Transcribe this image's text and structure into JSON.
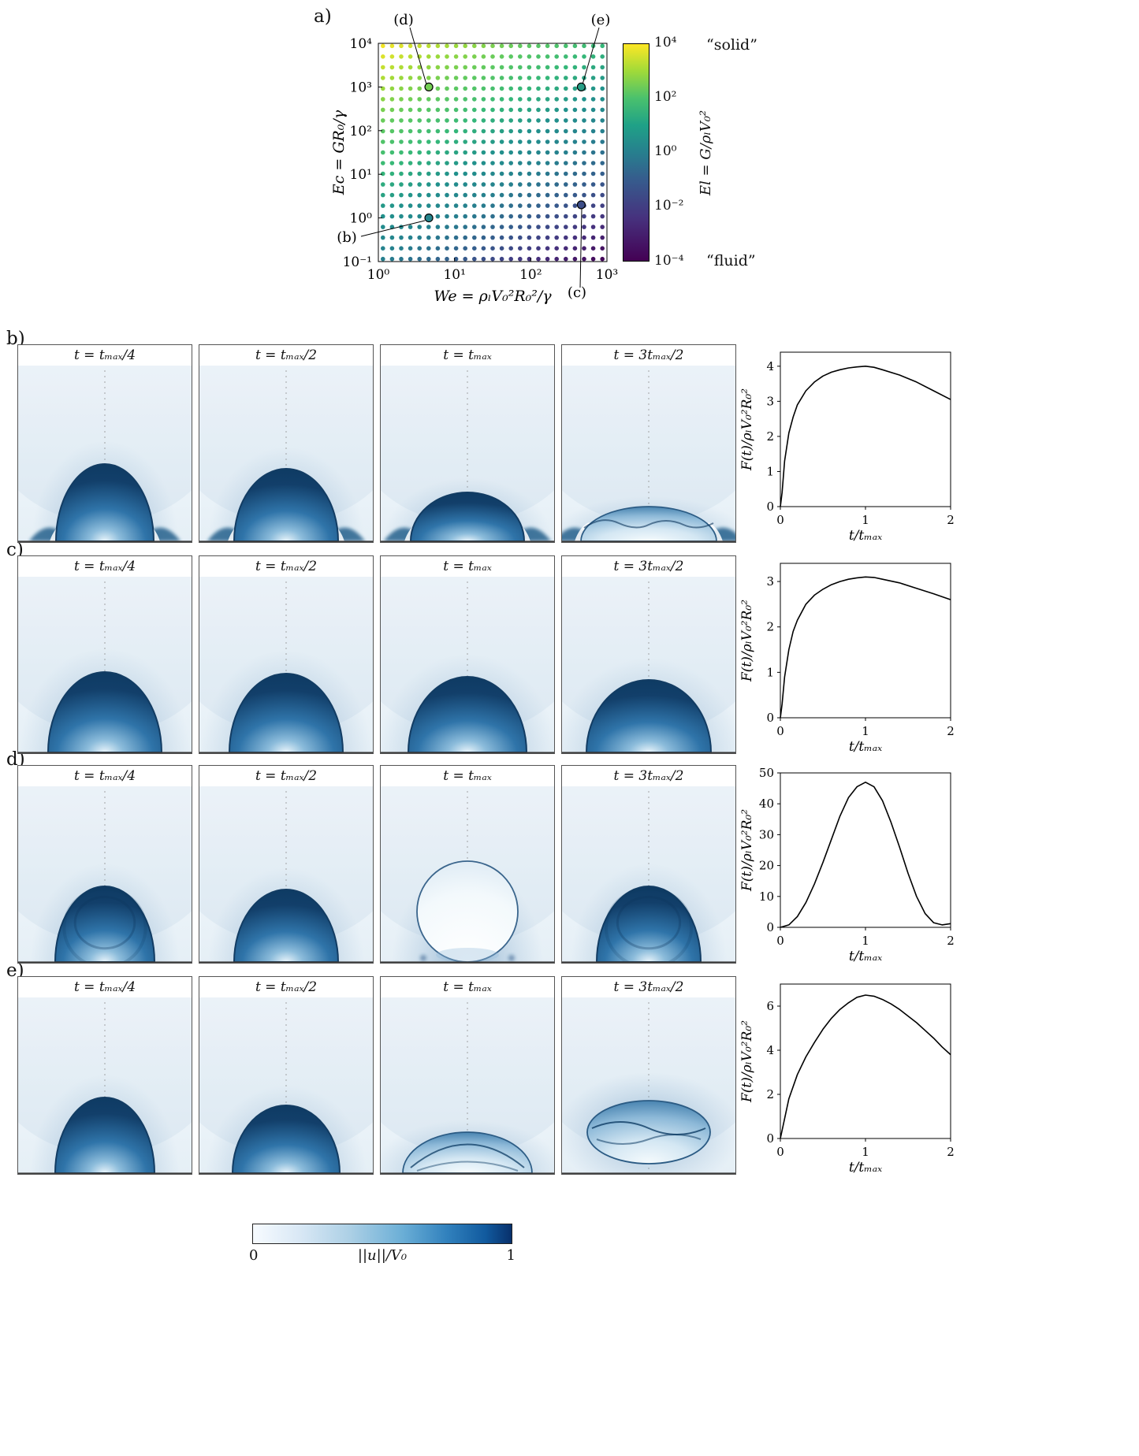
{
  "figure": {
    "panel_a": {
      "label": "a)",
      "x_label": "We = ρₗV₀²R₀²/γ",
      "y_label": "Ec = GR₀/γ",
      "x_ticks": [
        "10⁰",
        "10¹",
        "10²",
        "10³"
      ],
      "y_ticks": [
        "10⁴",
        "10³",
        "10²",
        "10¹",
        "10⁰",
        "10⁻¹"
      ],
      "colorbar": {
        "ticks": [
          "10⁴",
          "10²",
          "10⁰",
          "10⁻²",
          "10⁻⁴"
        ],
        "label": "El = G/ρₗV₀²",
        "top_text": "“solid”",
        "bottom_text": "“fluid”"
      }
    },
    "force_labels": {
      "xlabel": "t/tₘₐₓ",
      "ylabel": "F(t)/ρₗV₀²R₀²"
    },
    "rows": [
      {
        "label": "b)",
        "panels": [
          {
            "title": "t = tₘₐₓ/4",
            "variant": "b-dome-early"
          },
          {
            "title": "t = tₘₐₓ/2",
            "variant": "b-dome-mid"
          },
          {
            "title": "t = tₘₐₓ",
            "variant": "b-dome-flat"
          },
          {
            "title": "t = 3tₘₐₓ/2",
            "variant": "b-cap-spread"
          }
        ]
      },
      {
        "label": "c)",
        "panels": [
          {
            "title": "t = tₘₐₓ/4",
            "variant": "c-dome-1"
          },
          {
            "title": "t = tₘₐₓ/2",
            "variant": "c-dome-2"
          },
          {
            "title": "t = tₘₐₓ",
            "variant": "c-dome-3"
          },
          {
            "title": "t = 3tₘₐₓ/2",
            "variant": "c-dome-4"
          }
        ]
      },
      {
        "label": "d)",
        "panels": [
          {
            "title": "t = tₘₐₓ/4",
            "variant": "d-dome-rings"
          },
          {
            "title": "t = tₘₐₓ/2",
            "variant": "d-dome-bright"
          },
          {
            "title": "t = tₘₐₓ",
            "variant": "d-circle-rest"
          },
          {
            "title": "t = 3tₘₐₓ/2",
            "variant": "d-dome-rebound"
          }
        ]
      },
      {
        "label": "e)",
        "panels": [
          {
            "title": "t = tₘₐₓ/4",
            "variant": "e-dome-1"
          },
          {
            "title": "t = tₘₐₓ/2",
            "variant": "e-dome-2"
          },
          {
            "title": "t = tₘₐₓ",
            "variant": "e-cap-flat"
          },
          {
            "title": "t = 3tₘₐₓ/2",
            "variant": "e-ellipse-bounce"
          }
        ]
      }
    ],
    "velocity_colorbar": {
      "min": "0",
      "max": "1",
      "label": "||u||/V₀"
    }
  },
  "chart_data": [
    {
      "type": "scatter",
      "name": "phase-diagram",
      "xlabel": "We = rho_l V0^2 R0^2 / gamma",
      "ylabel": "Ec = G R0 / gamma",
      "x_log10_range": [
        0,
        3
      ],
      "y_log10_range": [
        -1,
        4
      ],
      "grid": {
        "cols": 25,
        "rows": 21
      },
      "color_map": "viridis",
      "color_value": "El = Ec / We",
      "color_log10_range": [
        -4,
        4
      ],
      "colorbar_tick_values": [
        10000,
        100,
        1,
        0.01,
        0.0001
      ],
      "state_labels": {
        "high_El": "solid",
        "low_El": "fluid"
      },
      "highlights": [
        {
          "label": "(b)",
          "We": 4.6,
          "Ec": 1
        },
        {
          "label": "(c)",
          "We": 460,
          "Ec": 2
        },
        {
          "label": "(d)",
          "We": 4.6,
          "Ec": 1000
        },
        {
          "label": "(e)",
          "We": 460,
          "Ec": 1000
        }
      ]
    },
    {
      "type": "line",
      "row": "b",
      "xlabel": "t/t_max",
      "ylabel": "F(t)/rho_l V0^2 R0^2",
      "x": [
        0,
        0.02,
        0.05,
        0.1,
        0.15,
        0.2,
        0.3,
        0.4,
        0.5,
        0.6,
        0.7,
        0.8,
        0.9,
        1.0,
        1.1,
        1.2,
        1.4,
        1.6,
        1.8,
        2.0
      ],
      "y": [
        0,
        0.4,
        1.3,
        2.1,
        2.55,
        2.9,
        3.3,
        3.55,
        3.72,
        3.83,
        3.9,
        3.95,
        3.98,
        4.0,
        3.97,
        3.9,
        3.75,
        3.55,
        3.3,
        3.05
      ],
      "xlim": [
        0,
        2
      ],
      "ylim": [
        0,
        4.4
      ],
      "xticks": [
        0,
        1,
        2
      ],
      "yticks": [
        0,
        1,
        2,
        3,
        4
      ]
    },
    {
      "type": "line",
      "row": "c",
      "xlabel": "t/t_max",
      "ylabel": "F(t)/rho_l V0^2 R0^2",
      "x": [
        0,
        0.02,
        0.05,
        0.1,
        0.15,
        0.2,
        0.3,
        0.4,
        0.5,
        0.6,
        0.7,
        0.8,
        0.9,
        1.0,
        1.1,
        1.2,
        1.4,
        1.6,
        1.8,
        2.0
      ],
      "y": [
        0,
        0.3,
        0.9,
        1.5,
        1.9,
        2.15,
        2.5,
        2.7,
        2.83,
        2.93,
        3.0,
        3.05,
        3.08,
        3.1,
        3.09,
        3.05,
        2.97,
        2.85,
        2.73,
        2.6
      ],
      "xlim": [
        0,
        2
      ],
      "ylim": [
        0,
        3.4
      ],
      "xticks": [
        0,
        1,
        2
      ],
      "yticks": [
        0,
        1,
        2,
        3
      ]
    },
    {
      "type": "line",
      "row": "d",
      "xlabel": "t/t_max",
      "ylabel": "F(t)/rho_l V0^2 R0^2",
      "x": [
        0,
        0.1,
        0.2,
        0.3,
        0.4,
        0.5,
        0.6,
        0.7,
        0.8,
        0.9,
        1.0,
        1.1,
        1.2,
        1.3,
        1.4,
        1.5,
        1.6,
        1.7,
        1.8,
        1.9,
        2.0
      ],
      "y": [
        0,
        0.8,
        3.5,
        8,
        14,
        21,
        28.5,
        36,
        42,
        45.5,
        47,
        45.5,
        41,
        34,
        26,
        17.5,
        10,
        4.5,
        1.5,
        0.8,
        1.2
      ],
      "xlim": [
        0,
        2
      ],
      "ylim": [
        0,
        50
      ],
      "xticks": [
        0,
        1,
        2
      ],
      "yticks": [
        0,
        10,
        20,
        30,
        40,
        50
      ]
    },
    {
      "type": "line",
      "row": "e",
      "xlabel": "t/t_max",
      "ylabel": "F(t)/rho_l V0^2 R0^2",
      "x": [
        0,
        0.05,
        0.1,
        0.2,
        0.3,
        0.4,
        0.5,
        0.6,
        0.7,
        0.8,
        0.9,
        1.0,
        1.1,
        1.2,
        1.3,
        1.4,
        1.5,
        1.6,
        1.7,
        1.8,
        1.9,
        2.0
      ],
      "y": [
        0,
        0.9,
        1.8,
        2.9,
        3.7,
        4.35,
        4.95,
        5.45,
        5.85,
        6.15,
        6.4,
        6.5,
        6.45,
        6.3,
        6.1,
        5.85,
        5.55,
        5.25,
        4.9,
        4.55,
        4.15,
        3.8
      ],
      "xlim": [
        0,
        2
      ],
      "ylim": [
        0,
        7
      ],
      "xticks": [
        0,
        1,
        2
      ],
      "yticks": [
        0,
        2,
        4,
        6
      ]
    }
  ]
}
